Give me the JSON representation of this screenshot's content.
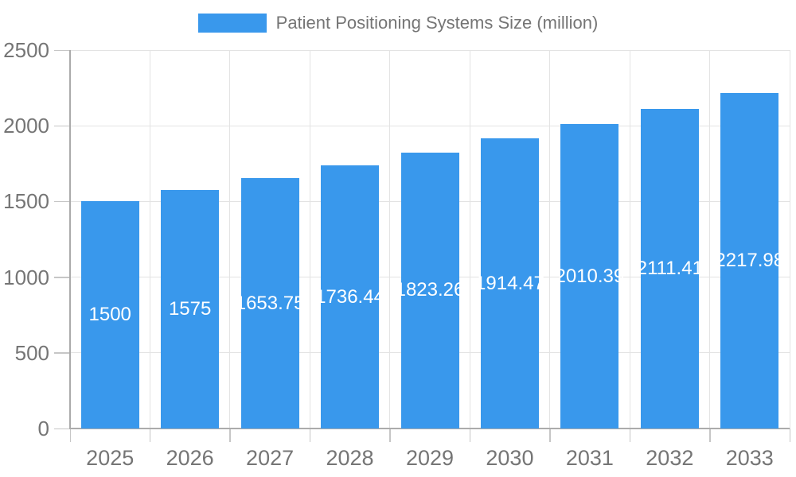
{
  "chart_data": {
    "type": "bar",
    "title": "Patient Positioning Systems Size (million)",
    "categories": [
      "2025",
      "2026",
      "2027",
      "2028",
      "2029",
      "2030",
      "2031",
      "2032",
      "2033"
    ],
    "values": [
      1500,
      1575,
      1653.75,
      1736.44,
      1823.26,
      1914.47,
      2010.39,
      2111.41,
      2217.98
    ],
    "value_labels": [
      "1500",
      "1575",
      "1653.75",
      "1736.44",
      "1823.26",
      "1914.47",
      "2010.39",
      "2111.41",
      "2217.98"
    ],
    "xlabel": "",
    "ylabel": "",
    "ylim": [
      0,
      2500
    ],
    "yticks": [
      0,
      500,
      1000,
      1500,
      2000,
      2500
    ],
    "grid": true,
    "legend_position": "top",
    "bar_color": "#3998EC",
    "value_label_color": "#ffffff"
  },
  "style": {
    "background_color": "#ffffff",
    "grid_color": "#e3e3e3",
    "axis_color": "#ababab",
    "tick_color": "#c6c6c6",
    "text_color": "#757575"
  }
}
